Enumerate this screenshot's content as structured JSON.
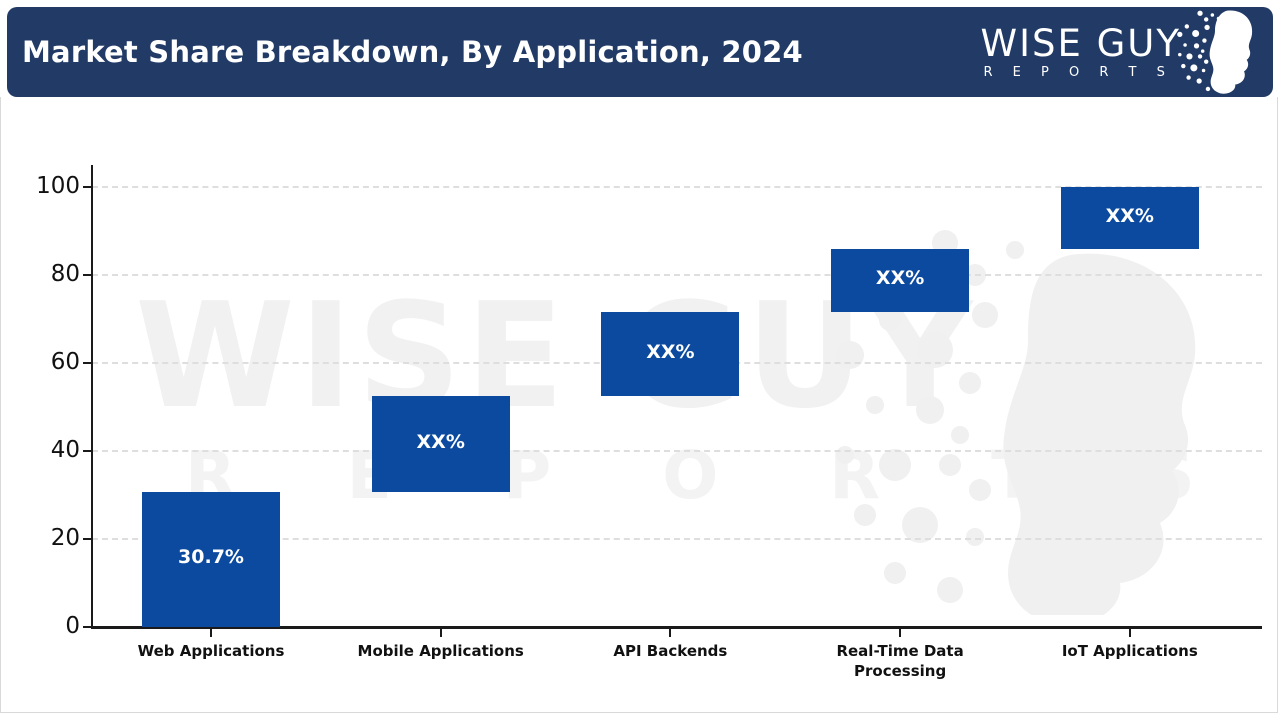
{
  "header": {
    "title": "Market Share Breakdown, By Application, 2024",
    "logo_line1": "WISE GUY",
    "logo_line2": "R E P O R T S"
  },
  "watermark": {
    "line1": "WISE GUY",
    "line2": "R E P O R T S"
  },
  "colors": {
    "header_bg": "#213a66",
    "bar": "#0b4a9f",
    "bar_label": "#ffffff",
    "grid": "#dedede",
    "axis": "#1a1a1a",
    "watermark": "#f1f1f1"
  },
  "chart_data": {
    "type": "bar",
    "subtype": "waterfall",
    "title": "Market Share Breakdown, By Application, 2024",
    "unit": "%",
    "categories": [
      "Web Applications",
      "Mobile Applications",
      "API Backends",
      "Real-Time Data Processing",
      "IoT Applications"
    ],
    "segments": [
      {
        "category": "Web Applications",
        "start": 0,
        "end": 30.7,
        "label": "30.7%"
      },
      {
        "category": "Mobile Applications",
        "start": 30.7,
        "end": 52.5,
        "label": "XX%"
      },
      {
        "category": "API Backends",
        "start": 52.5,
        "end": 71.7,
        "label": "XX%"
      },
      {
        "category": "Real-Time Data Processing",
        "start": 71.7,
        "end": 86,
        "label": "XX%"
      },
      {
        "category": "IoT Applications",
        "start": 86,
        "end": 100,
        "label": "XX%"
      }
    ],
    "yticks": [
      0,
      20,
      40,
      60,
      80,
      100
    ],
    "ylim": [
      0,
      100
    ],
    "grid": true,
    "grid_style": "dashed-horizontal",
    "legend": false,
    "bar_color": "#0b4a9f",
    "label_color": "#ffffff",
    "masked_value_placeholder": "XX%"
  }
}
